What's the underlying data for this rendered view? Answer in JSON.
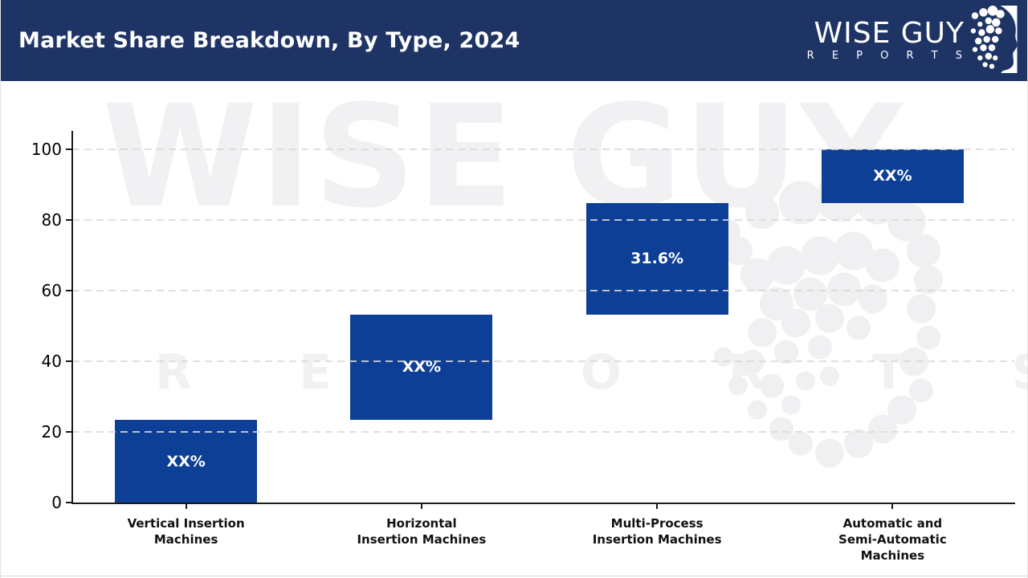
{
  "header": {
    "title": "Market Share Breakdown, By Type, 2024",
    "logo": {
      "name": "WISE GUY",
      "sub": "REPORTS"
    }
  },
  "watermark": {
    "line1": "WISE GUY",
    "line2": "REPORTS"
  },
  "colors": {
    "header_bg": "#1e3465",
    "bar": "#0d3f96",
    "bar_label": "#ffffff",
    "grid": "#d9d9d9",
    "axis": "#1a1a1a",
    "watermark": "#f1f1f3"
  },
  "chart_data": {
    "type": "bar",
    "subtype": "floating-waterfall",
    "title": "Market Share Breakdown, By Type, 2024",
    "categories": [
      [
        "Vertical Insertion",
        "Machines"
      ],
      [
        "Horizontal",
        "Insertion Machines"
      ],
      [
        "Multi-Process",
        "Insertion Machines"
      ],
      [
        "Automatic and",
        "Semi-Automatic",
        "Machines"
      ]
    ],
    "segments": [
      {
        "from": 0,
        "to": 23.4,
        "label": "XX%"
      },
      {
        "from": 23.4,
        "to": 53.2,
        "label": "XX%"
      },
      {
        "from": 53.2,
        "to": 84.8,
        "label": "31.6%"
      },
      {
        "from": 84.8,
        "to": 100,
        "label": "XX%"
      }
    ],
    "yticks": [
      0,
      20,
      40,
      60,
      80,
      100
    ],
    "ylim": [
      0,
      100
    ],
    "xlabel": "",
    "ylabel": "",
    "grid": {
      "horizontal": true,
      "style": "dashed",
      "color": "#d9d9d9"
    },
    "legend": null
  }
}
